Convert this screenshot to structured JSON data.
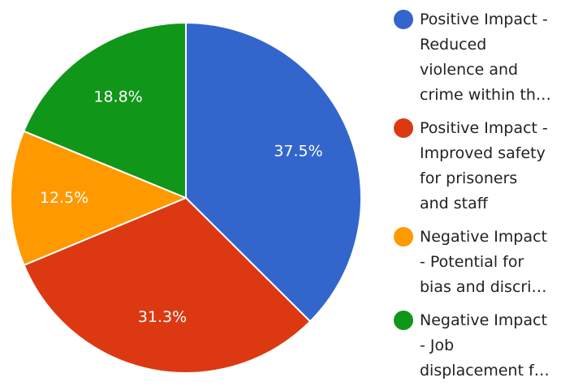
{
  "chart_data": {
    "type": "pie",
    "title": "",
    "legend_position": "right",
    "slices": [
      {
        "label": "Positive Impact - Reduced violence and crime within th…",
        "legend_lines": [
          "Positive Impact -",
          "Reduced",
          "violence and",
          "crime within th…"
        ],
        "value": 37.5,
        "display": "37.5%",
        "color": "#3366cc"
      },
      {
        "label": "Positive Impact - Improved safety for prisoners and staff",
        "legend_lines": [
          "Positive Impact -",
          "Improved safety",
          "for prisoners",
          "and staff"
        ],
        "value": 31.3,
        "display": "31.3%",
        "color": "#dc3912"
      },
      {
        "label": "Negative Impact - Potential for bias and discri…",
        "legend_lines": [
          "Negative Impact",
          "- Potential for",
          "bias and discri…"
        ],
        "value": 12.5,
        "display": "12.5%",
        "color": "#ff9900"
      },
      {
        "label": "Negative Impact - Job displacement f…",
        "legend_lines": [
          "Negative Impact",
          "- Job",
          "displacement f…"
        ],
        "value": 18.8,
        "display": "18.8%",
        "color": "#109618"
      }
    ]
  }
}
